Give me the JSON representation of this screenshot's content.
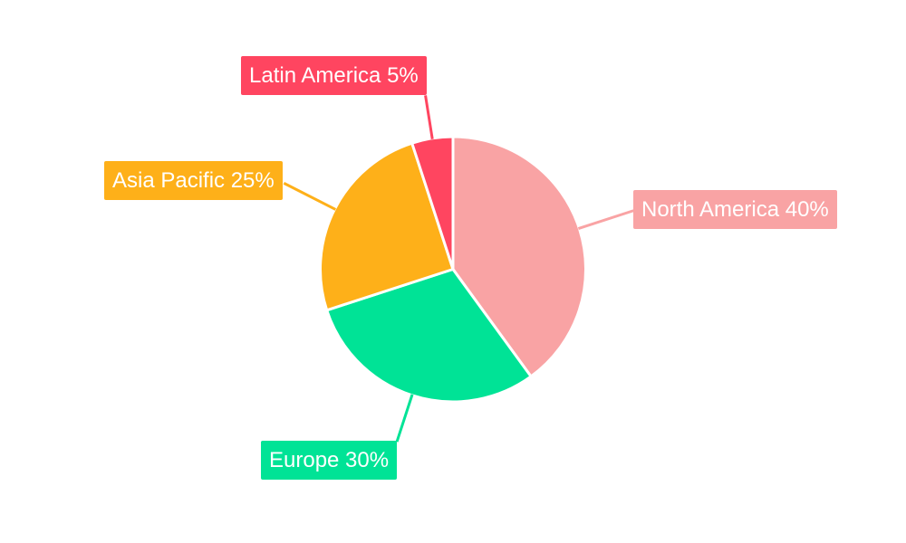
{
  "chart_data": {
    "type": "pie",
    "title": "",
    "categories": [
      "North America",
      "Europe",
      "Asia Pacific",
      "Latin America"
    ],
    "values": [
      40,
      30,
      25,
      5
    ],
    "unit": "%",
    "labels": [
      "North America 40%",
      "Europe 30%",
      "Asia Pacific 25%",
      "Latin America 5%"
    ],
    "slice_colors": [
      "#F9A3A4",
      "#00E396",
      "#FEB019",
      "#FF4560"
    ],
    "label_text_color": "#FFFFFF",
    "slice_gap_color": "#FFFFFF",
    "start_angle": 0,
    "direction": "clockwise",
    "legend_position": "none",
    "background": "#FFFFFF"
  }
}
